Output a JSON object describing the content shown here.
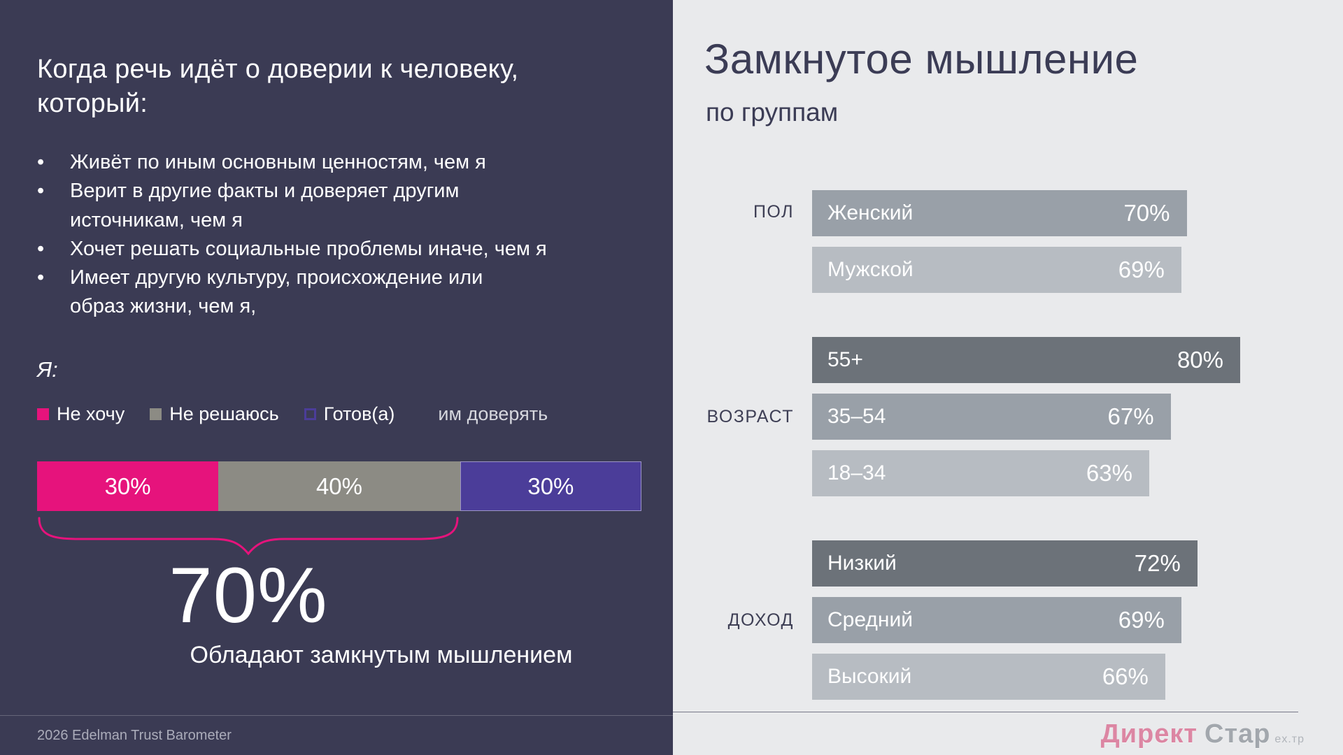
{
  "colors": {
    "navy": "#3b3b54",
    "panel_bg": "#e9eaec",
    "pink": "#e6137c",
    "taupe": "#8c8b84",
    "purple": "#4b3d99",
    "bar_dark": "#6c7279",
    "bar_medium": "#99a0a8",
    "bar_light": "#b7bcc2",
    "footer_text": "#abacba"
  },
  "left": {
    "title": "Когда речь идёт о доверии к человеку,\nкоторый:",
    "bullet_marker": "•",
    "bullets": [
      "Живёт по иным основным ценностям, чем я",
      "Верит в другие факты и доверяет другим\nисточникам, чем я",
      "Хочет решать социальные проблемы иначе, чем я",
      "Имеет другую культуру, происхождение или\nобраз жизни, чем я,"
    ],
    "footer": "2026 Edelman Trust Barometer"
  },
  "right": {
    "watermark": {
      "part1": "Директ",
      "part2": "Стар",
      "suffix": "ex.тр"
    }
  },
  "chart_data": [
    {
      "type": "bar",
      "subtype": "stacked_100_horizontal",
      "prompt": "Я:",
      "legend": [
        "Не хочу",
        "Не решаюсь",
        "Готов(а)"
      ],
      "legend_note": "им доверять",
      "units": "%",
      "xlim": [
        0,
        100
      ],
      "segments": [
        {
          "label": "Не хочу",
          "value": 30,
          "display": "30%",
          "color": "#e6137c"
        },
        {
          "label": "Не решаюсь",
          "value": 40,
          "display": "40%",
          "color": "#8c8b84"
        },
        {
          "label": "Готов(а)",
          "value": 30,
          "display": "30%",
          "color": "#4b3d99"
        }
      ],
      "callout": {
        "covers": [
          "Не хочу",
          "Не решаюсь"
        ],
        "value": 70,
        "display": "70%",
        "caption": "Обладают замкнутым мышлением"
      }
    },
    {
      "type": "bar",
      "orientation": "horizontal",
      "title": "Замкнутое мышление",
      "subtitle": "по группам",
      "units": "%",
      "xlim": [
        0,
        80
      ],
      "grid": false,
      "legend_position": "none",
      "groups": [
        {
          "label": "ПОЛ",
          "bars": [
            {
              "label": "Женский",
              "value": 70,
              "display": "70%"
            },
            {
              "label": "Мужской",
              "value": 69,
              "display": "69%"
            }
          ]
        },
        {
          "label": "ВОЗРАСТ",
          "bars": [
            {
              "label": "55+",
              "value": 80,
              "display": "80%"
            },
            {
              "label": "35–54",
              "value": 67,
              "display": "67%"
            },
            {
              "label": "18–34",
              "value": 63,
              "display": "63%"
            }
          ]
        },
        {
          "label": "ДОХОД",
          "bars": [
            {
              "label": "Низкий",
              "value": 72,
              "display": "72%"
            },
            {
              "label": "Средний",
              "value": 69,
              "display": "69%"
            },
            {
              "label": "Высокий",
              "value": 66,
              "display": "66%"
            }
          ]
        }
      ]
    }
  ]
}
